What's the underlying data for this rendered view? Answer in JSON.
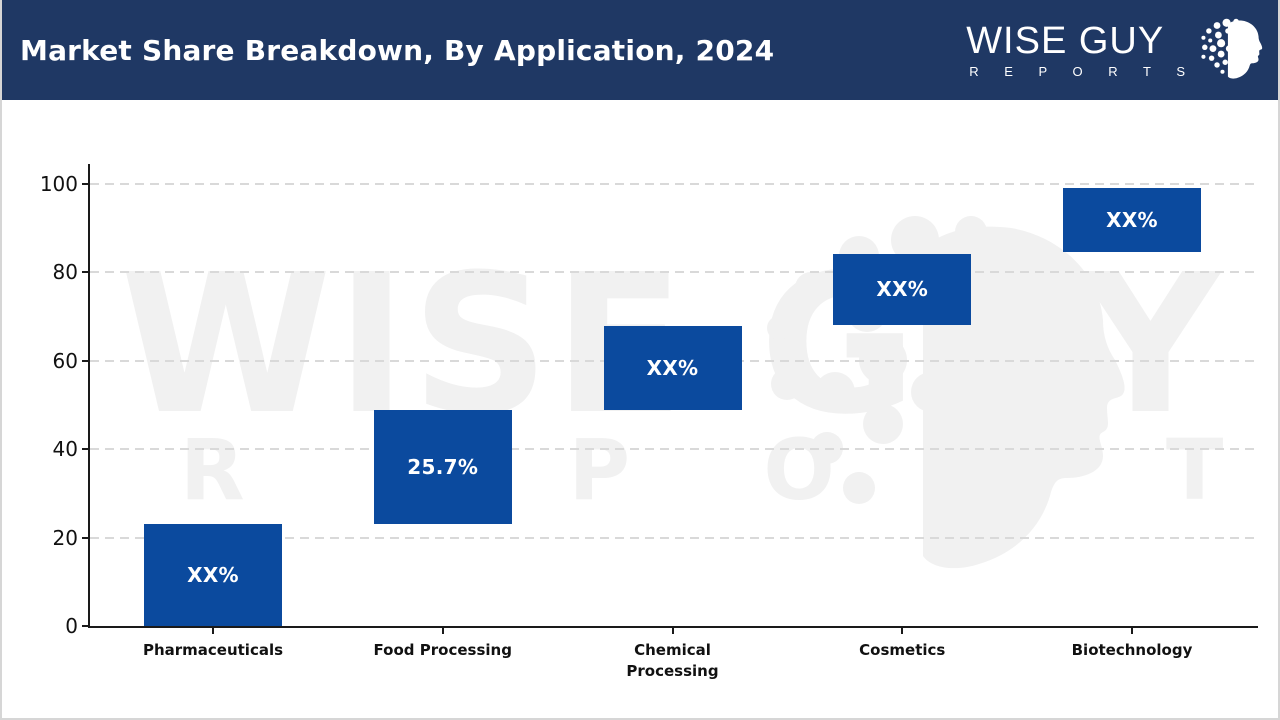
{
  "header": {
    "title": "Market Share Breakdown, By Application, 2024",
    "logo": {
      "line1": "WISE GUY",
      "line2": "R E P O R T S"
    }
  },
  "watermark": {
    "line1": "WISE GUY",
    "line2": "R E P O R T S"
  },
  "colors": {
    "header_bg": "#1f3864",
    "bar": "#0b4a9e",
    "grid": "#d9d9d9",
    "axis": "#1a1a1a",
    "watermark": "#f1f1f1",
    "bar_label": "#ffffff"
  },
  "chart_data": {
    "type": "bar",
    "subtype": "waterfall",
    "title": "Market Share Breakdown, By Application, 2024",
    "xlabel": "",
    "ylabel": "",
    "ylim": [
      0,
      105
    ],
    "yticks": [
      0,
      20,
      40,
      60,
      80,
      100
    ],
    "grid": "horizontal-dashed",
    "legend": "none",
    "categories": [
      "Pharmaceuticals",
      "Food Processing",
      "Chemical\nProcessing",
      "Cosmetics",
      "Biotechnology"
    ],
    "segments": [
      {
        "category": "Pharmaceuticals",
        "start": 0,
        "end": 23.1,
        "value": 23.1,
        "label": "XX%"
      },
      {
        "category": "Food Processing",
        "start": 23.1,
        "end": 48.8,
        "value": 25.7,
        "label": "25.7%"
      },
      {
        "category": "Chemical Processing",
        "start": 48.9,
        "end": 67.9,
        "value": 19.0,
        "label": "XX%"
      },
      {
        "category": "Cosmetics",
        "start": 68.1,
        "end": 84.2,
        "value": 16.1,
        "label": "XX%"
      },
      {
        "category": "Biotechnology",
        "start": 84.6,
        "end": 99.1,
        "value": 14.5,
        "label": "XX%"
      }
    ]
  }
}
